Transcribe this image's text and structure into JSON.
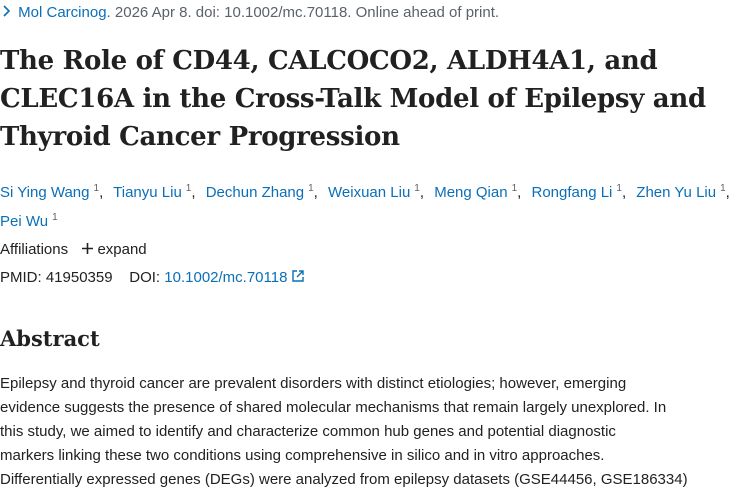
{
  "citation": {
    "journal": "Mol Carcinog.",
    "details": "2026 Apr 8. doi: 10.1002/mc.70118. Online ahead of print."
  },
  "title": "The Role of CD44, CALCOCO2, ALDH4A1, and CLEC16A in the Cross-Talk Model of Epilepsy and Thyroid Cancer Progression",
  "authors": [
    {
      "name": "Si Ying Wang",
      "affiliation": "1"
    },
    {
      "name": "Tianyu Liu",
      "affiliation": "1"
    },
    {
      "name": "Dechun Zhang",
      "affiliation": "1"
    },
    {
      "name": "Weixuan Liu",
      "affiliation": "1"
    },
    {
      "name": "Meng Qian",
      "affiliation": "1"
    },
    {
      "name": "Rongfang Li",
      "affiliation": "1"
    },
    {
      "name": "Zhen Yu Liu",
      "affiliation": "1"
    },
    {
      "name": "Pei Wu",
      "affiliation": "1"
    }
  ],
  "affiliations": {
    "label": "Affiliations",
    "toggle": "expand"
  },
  "identifiers": {
    "pmid_label": "PMID:",
    "pmid": "41950359",
    "doi_label": "DOI:",
    "doi": "10.1002/mc.70118"
  },
  "abstract": {
    "heading": "Abstract",
    "lines": [
      "Epilepsy and thyroid cancer are prevalent disorders with distinct etiologies; however, emerging",
      "evidence suggests the presence of shared molecular mechanisms that remain largely unexplored. In",
      "this study, we aimed to identify and characterize common hub genes and potential diagnostic",
      "markers linking these two conditions using comprehensive in silico and in vitro approaches.",
      "Differentially expressed genes (DEGs) were analyzed from epilepsy datasets (GSE44456, GSE186334)"
    ]
  }
}
